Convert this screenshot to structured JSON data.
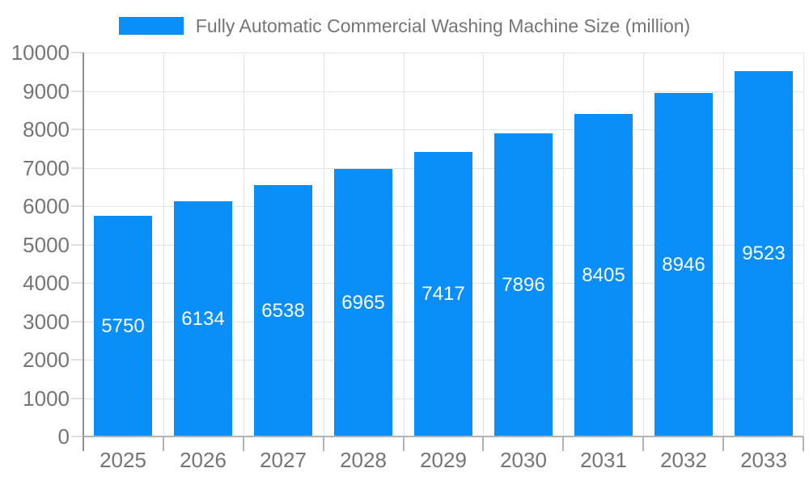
{
  "legend": {
    "label": "Fully Automatic Commercial Washing Machine Size (million)"
  },
  "chart_data": {
    "type": "bar",
    "title": "",
    "categories": [
      "2025",
      "2026",
      "2027",
      "2028",
      "2029",
      "2030",
      "2031",
      "2032",
      "2033"
    ],
    "values": [
      5750,
      6134,
      6538,
      6965,
      7417,
      7896,
      8405,
      8946,
      9523
    ],
    "series": [
      {
        "name": "Fully Automatic Commercial Washing Machine Size (million)",
        "values": [
          5750,
          6134,
          6538,
          6965,
          7417,
          7896,
          8405,
          8946,
          9523
        ]
      }
    ],
    "xlabel": "",
    "ylabel": "",
    "ylim": [
      0,
      10000
    ],
    "yticks": [
      0,
      1000,
      2000,
      3000,
      4000,
      5000,
      6000,
      7000,
      8000,
      9000,
      10000
    ],
    "grid": true,
    "legend_position": "top",
    "bar_label_position": "inside-center",
    "bar_color": "#0a8ff9",
    "bar_label_color": "#ffffff",
    "axis_text_color": "#757575",
    "gridline_color": "#e3e3e3",
    "axis_line_color": "#8f8f8f",
    "baseline_color": "#b3b3b3",
    "background_color": "#ffffff"
  }
}
